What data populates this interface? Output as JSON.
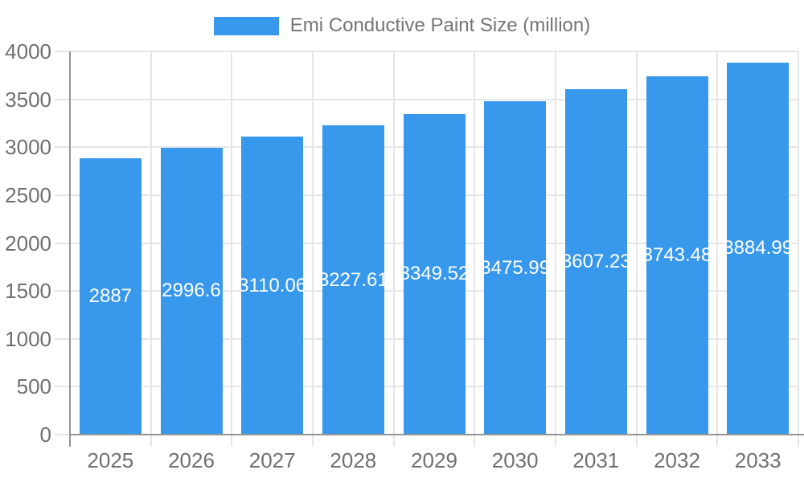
{
  "legend": {
    "label": "Emi Conductive Paint Size (million)"
  },
  "chart_data": {
    "type": "bar",
    "title": "",
    "categories": [
      "2025",
      "2026",
      "2027",
      "2028",
      "2029",
      "2030",
      "2031",
      "2032",
      "2033"
    ],
    "series": [
      {
        "name": "Emi Conductive Paint Size (million)",
        "values": [
          2887,
          2996.6,
          3110.06,
          3227.61,
          3349.52,
          3475.99,
          3607.23,
          3743.48,
          3884.99
        ]
      }
    ],
    "value_labels": [
      "2887",
      "2996.6",
      "3110.06",
      "3227.61",
      "3349.52",
      "3475.99",
      "3607.23",
      "3743.48",
      "3884.99"
    ],
    "xlabel": "",
    "ylabel": "",
    "ylim": [
      0,
      4000
    ],
    "yticks": [
      0,
      500,
      1000,
      1500,
      2000,
      2500,
      3000,
      3500,
      4000
    ],
    "ytick_labels": [
      "0",
      "500",
      "1000",
      "1500",
      "2000",
      "2500",
      "3000",
      "3500",
      "4000"
    ],
    "grid": "on",
    "legend_position": "top"
  },
  "colors": {
    "bar": "#3898EC",
    "value_label_text": "#FFFFFF",
    "gridline": "#E6E6E6",
    "axis_line": "#959595",
    "axis_text": "#6F6F6F",
    "legend_text": "#757575",
    "background": "#FFFFFF"
  }
}
